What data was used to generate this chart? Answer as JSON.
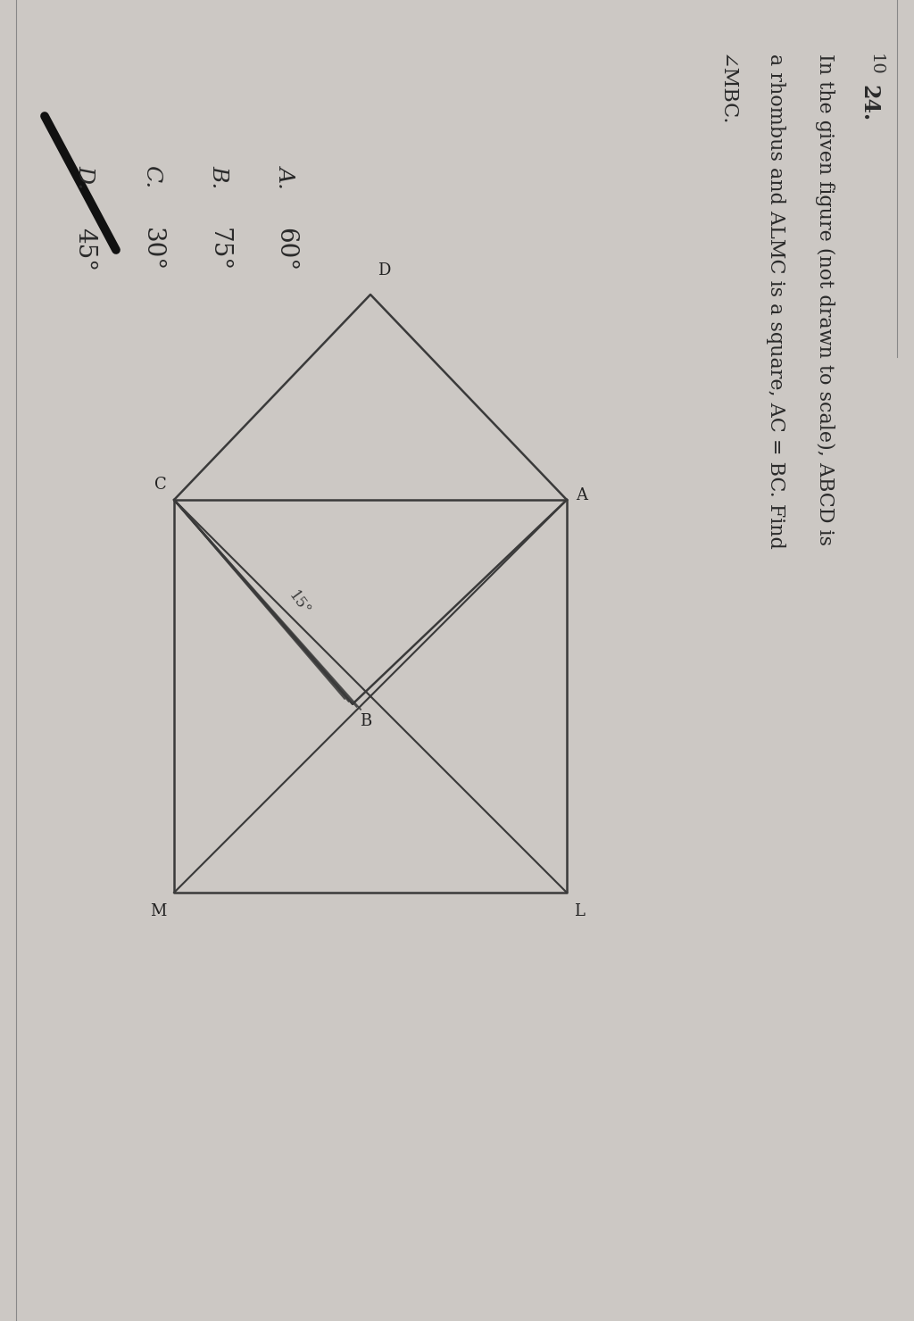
{
  "background_color": "#ccc8c4",
  "page_color": "#c8c4c0",
  "question_number": "24.",
  "question_text_line1": "In the given figure (not drawn to scale), ABCD is",
  "question_text_line2": "a rhombus and ALMC is a square, AC = BC. Find",
  "question_text_line3": "∠MBC.",
  "choices": [
    {
      "label": "A.",
      "value": "60°"
    },
    {
      "label": "B.",
      "value": "75°"
    },
    {
      "label": "C.",
      "value": "30°"
    },
    {
      "label": "D.",
      "value": "45°"
    }
  ],
  "page_number_left": "10",
  "angle_label": "15°",
  "line_color": "#3a3a3a",
  "line_width": 1.8,
  "label_fontsize": 13,
  "text_fontsize": 16,
  "choice_fontsize": 20
}
